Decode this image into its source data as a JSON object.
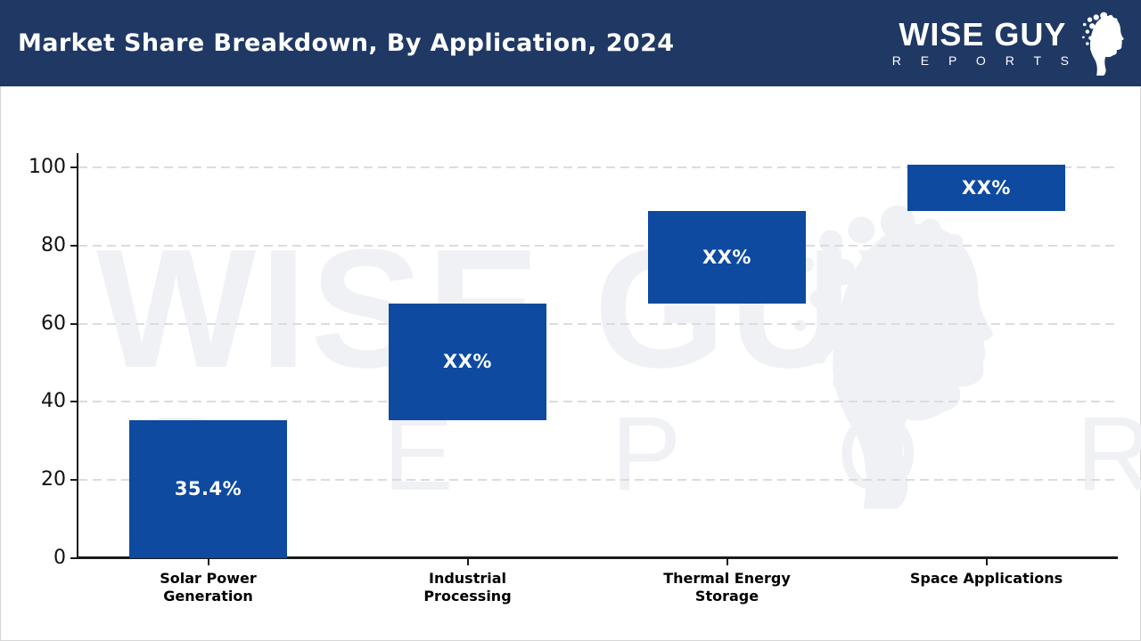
{
  "header": {
    "title": "Market Share Breakdown, By Application, 2024",
    "background": "#1f3864",
    "brand": {
      "name": "WISE GUY",
      "subtitle": "R E P O R T S"
    }
  },
  "watermark": {
    "line1": "WISE GUY",
    "line2": "R E P O R T S"
  },
  "chart_data": {
    "type": "bar",
    "subtype": "waterfall-floating-segments",
    "title": "Market Share Breakdown, By Application, 2024",
    "categories": [
      "Solar Power\nGeneration",
      "Industrial\nProcessing",
      "Thermal Energy\nStorage",
      "Space Applications"
    ],
    "segments": [
      {
        "category": "Solar Power Generation",
        "label": "35.4%",
        "start": 0,
        "end": 35.4
      },
      {
        "category": "Industrial Processing",
        "label": "XX%",
        "start": 35.4,
        "end": 65.1
      },
      {
        "category": "Thermal Energy Storage",
        "label": "XX%",
        "start": 65.1,
        "end": 88.8
      },
      {
        "category": "Space Applications",
        "label": "XX%",
        "start": 88.8,
        "end": 100.7
      }
    ],
    "yticks": [
      0,
      20,
      40,
      60,
      80,
      100
    ],
    "ylim": [
      0,
      100
    ],
    "grid": "dashed horizontal, light gray",
    "bar_color": "#0d4aa0",
    "bar_label_color": "#ffffff",
    "axis_color": "#1a1a1a"
  }
}
